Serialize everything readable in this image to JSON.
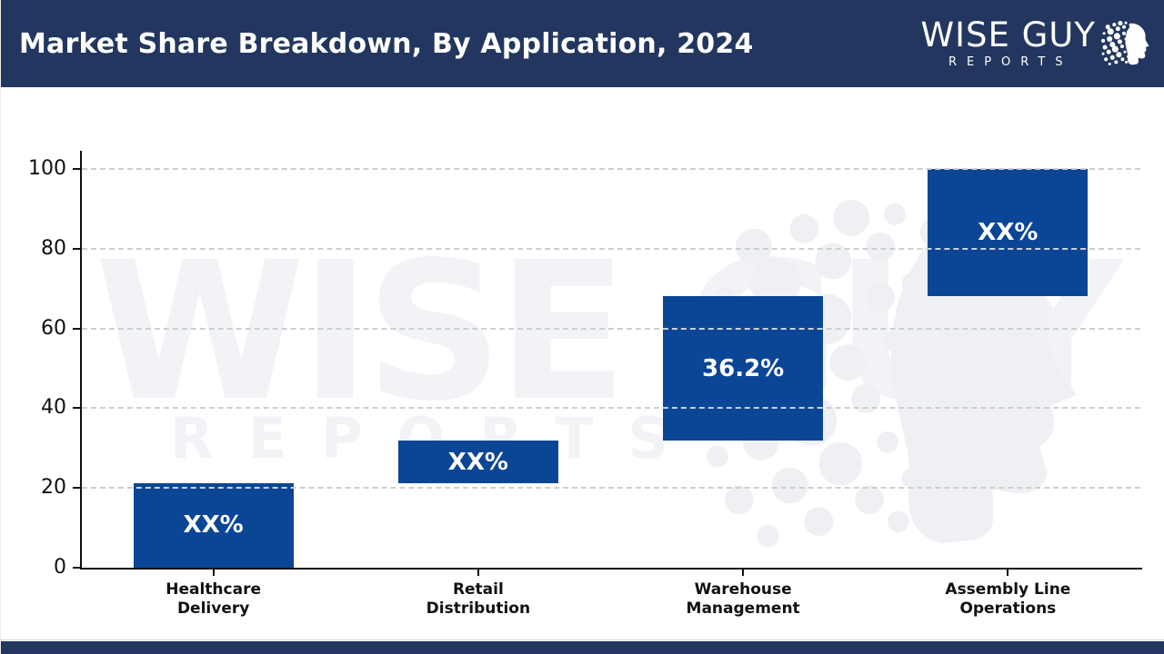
{
  "header": {
    "title": "Market Share Breakdown, By Application, 2024",
    "bg_color": "#22365f",
    "logo": {
      "line1": "WISE GUY",
      "line2": "REPORTS"
    }
  },
  "watermark": {
    "line1": "WISE GUY",
    "line2": "REPORTS"
  },
  "footer": {
    "bg_color": "#22365f"
  },
  "chart_data": {
    "type": "bar",
    "variant": "waterfall",
    "title": "Market Share Breakdown, By Application, 2024",
    "categories": [
      "Healthcare\nDelivery",
      "Retail\nDistribution",
      "Warehouse\nManagement",
      "Assembly Line\nOperations"
    ],
    "series": [
      {
        "segments": [
          {
            "start": 0,
            "end": 21.2,
            "label": "XX%"
          },
          {
            "start": 21.2,
            "end": 31.8,
            "label": "XX%"
          },
          {
            "start": 31.8,
            "end": 68.0,
            "label": "36.2%"
          },
          {
            "start": 68.0,
            "end": 100.0,
            "label": "XX%"
          }
        ]
      }
    ],
    "ylim": [
      0,
      100
    ],
    "yticks": [
      0,
      20,
      40,
      60,
      80,
      100
    ],
    "grid": "horizontal-dashed",
    "legend": "none",
    "bar_color": "#0b4696",
    "bar_label_color": "#ffffff",
    "axis_color": "#111111",
    "grid_color": "#cbcfd6"
  }
}
